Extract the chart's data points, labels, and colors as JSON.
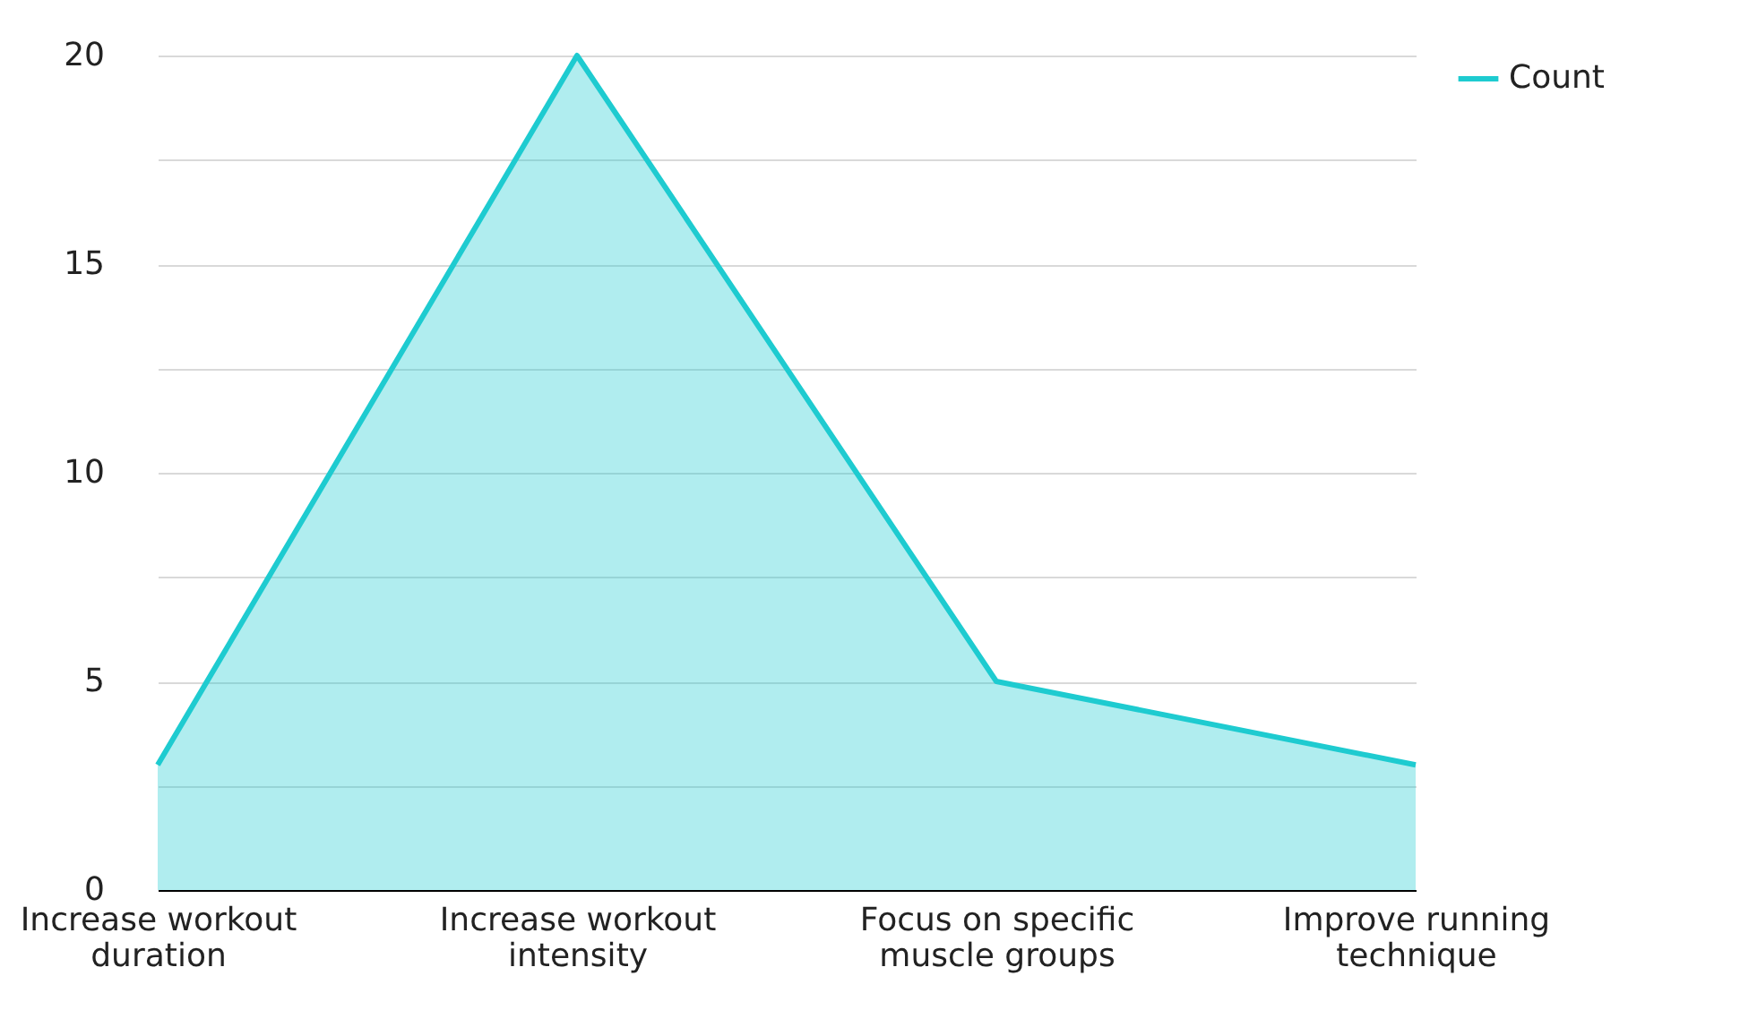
{
  "chart_data": {
    "type": "area",
    "categories": [
      "Increase workout duration",
      "Increase workout intensity",
      "Focus on specific muscle groups",
      "Improve running technique"
    ],
    "series": [
      {
        "name": "Count",
        "color": "#1ecbd0",
        "values": [
          3,
          20,
          5,
          3
        ]
      }
    ],
    "ylim": [
      0,
      20
    ],
    "yticks": [
      0,
      {
        "value": 2.5,
        "label": null
      },
      5,
      {
        "value": 7.5,
        "label": null
      },
      10,
      {
        "value": 12.5,
        "label": null
      },
      15,
      {
        "value": 17.5,
        "label": null
      },
      20
    ],
    "grid": "y",
    "legend": "top right"
  }
}
